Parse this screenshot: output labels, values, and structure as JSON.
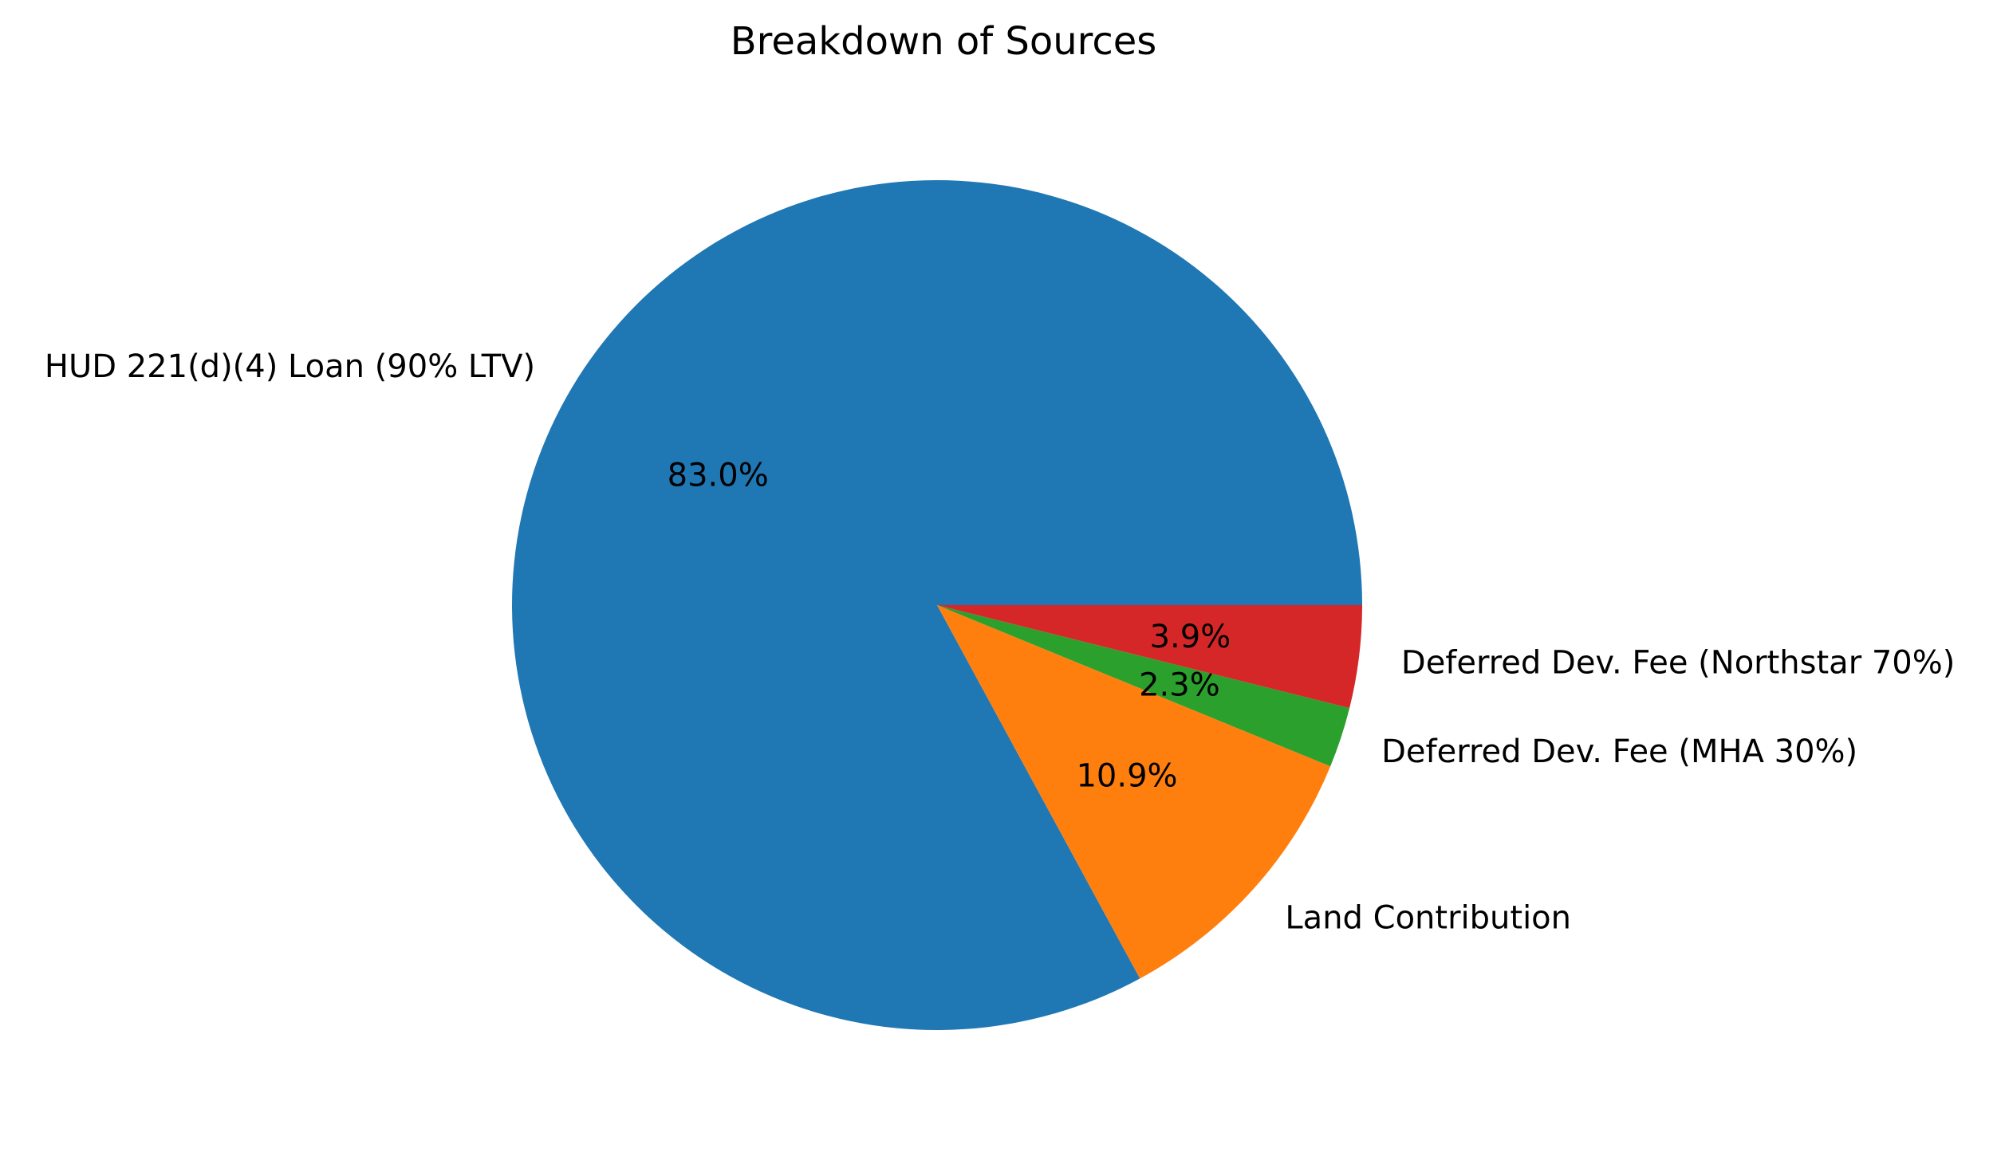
{
  "chart_data": {
    "type": "pie",
    "title": "Breakdown of Sources",
    "slices": [
      {
        "label": "HUD 221(d)(4) Loan (90% LTV)",
        "value_pct": 83.0,
        "pct_label": "83.0%",
        "color": "#1f77b4"
      },
      {
        "label": "Land Contribution",
        "value_pct": 10.9,
        "pct_label": "10.9%",
        "color": "#ff7f0e"
      },
      {
        "label": "Deferred Dev. Fee (MHA 30%)",
        "value_pct": 2.3,
        "pct_label": "2.3%",
        "color": "#2ca02c"
      },
      {
        "label": "Deferred Dev. Fee (Northstar 70%)",
        "value_pct": 3.9,
        "pct_label": "3.9%",
        "color": "#d62728"
      }
    ],
    "start_angle_deg": 0,
    "counterclockwise": true,
    "pct_distance": 0.6,
    "label_distance": 1.1,
    "legend": "none",
    "background_color": "#ffffff",
    "text_color": "#000000"
  }
}
